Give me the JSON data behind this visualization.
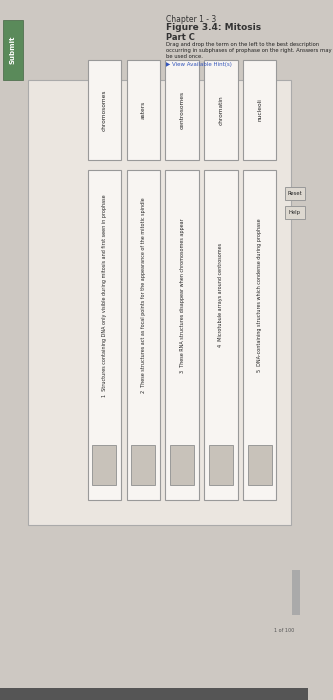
{
  "title_chapter": "Chapter 1 - 3",
  "title_figure": "Figure 3.4: Mitosis",
  "part_label": "Part C",
  "instruction": "Drag and drop the term on the left to the best description occurring in subphases of prophase on the right. Answers may be used once.",
  "hint_text": "▶ View Available Hint(s)",
  "drag_terms": [
    "chromosomes",
    "asters",
    "centrosomes",
    "chromatin",
    "nucleoli"
  ],
  "descriptions": [
    "1  Structures containing DNA only visible during mitosis and first seen in prophase",
    "2  These structures act as focal points for the appearance of the mitotic spindle",
    "3  These RNA structures disappear when chromosomes appear",
    "4  Microtubule arrays around centrosomes",
    "5  DNA-containing structures which condense during prophase"
  ],
  "button_reset": "Reset",
  "button_help": "Help",
  "submit_label": "Submit",
  "bg_color": "#cdc8c2",
  "content_bg": "#ebe6e0",
  "box_bg": "#f8f5f2",
  "box_border": "#999999",
  "term_box_bg": "#f8f5f2",
  "term_box_border": "#999999",
  "answer_box_bg": "#c8c2ba",
  "answer_box_border": "#999999",
  "title_color": "#333333",
  "text_color": "#222222",
  "submit_bg": "#5a8a5a",
  "submit_text": "#ffffff",
  "button_bg": "#ddd8d0",
  "button_border": "#999999",
  "scrollbar_color": "#aaaaaa",
  "page_num": "1 of 100"
}
